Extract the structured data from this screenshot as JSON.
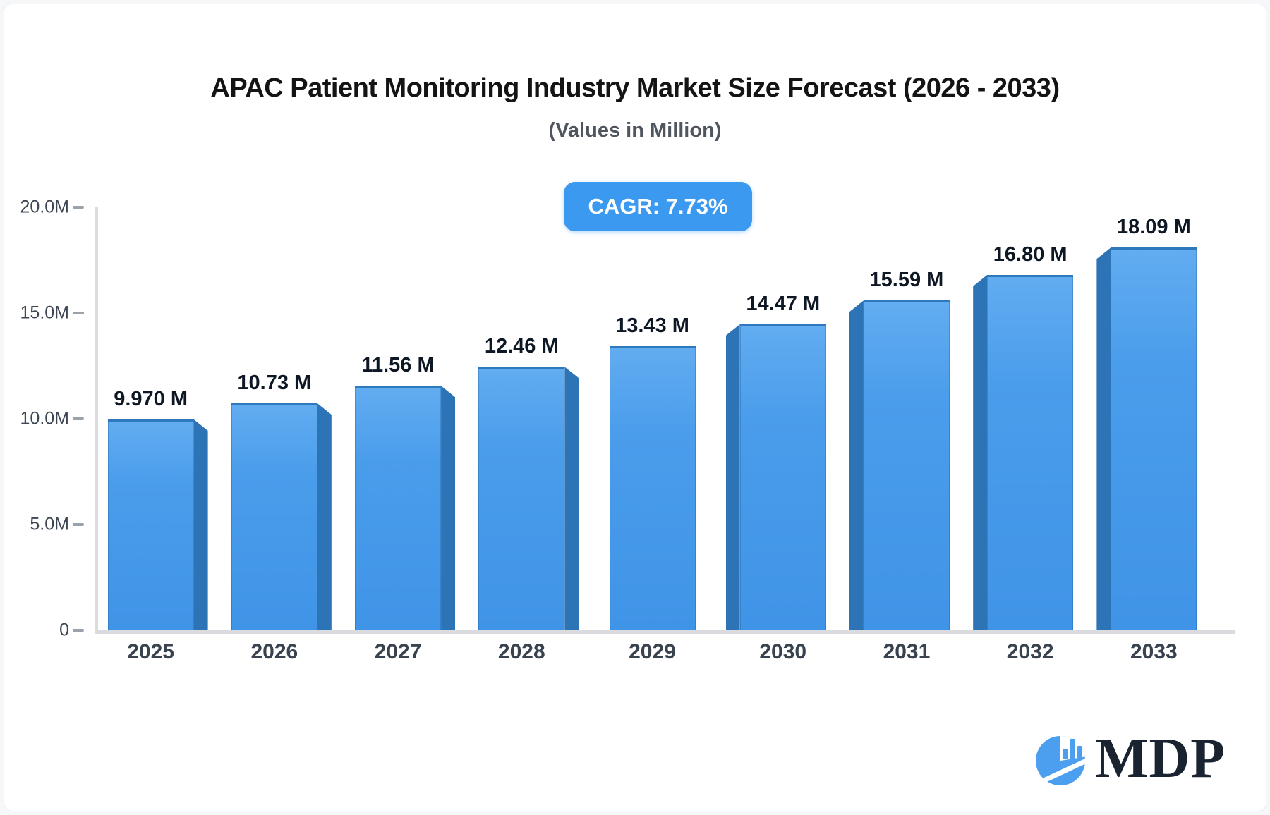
{
  "page": {
    "background": "#f6f7f9",
    "card_background": "#ffffff"
  },
  "header": {
    "title": "APAC Patient Monitoring Industry Market Size Forecast (2026 - 2033)",
    "subtitle": "(Values in Million)"
  },
  "badge": {
    "label": "CAGR: 7.73%",
    "background": "#3b9af0",
    "text_color": "#ffffff"
  },
  "chart_data": {
    "type": "bar",
    "title": "APAC Patient Monitoring Industry Market Size Forecast (2026 - 2033)",
    "subtitle": "(Values in Million)",
    "unit": "Million",
    "cagr": "7.73%",
    "categories": [
      "2025",
      "2026",
      "2027",
      "2028",
      "2029",
      "2030",
      "2031",
      "2032",
      "2033"
    ],
    "values": [
      9.97,
      10.73,
      11.56,
      12.46,
      13.43,
      14.47,
      15.59,
      16.8,
      18.09
    ],
    "value_labels": [
      "9.970 M",
      "10.73 M",
      "11.56 M",
      "12.46 M",
      "13.43 M",
      "14.47 M",
      "15.59 M",
      "16.80 M",
      "18.09 M"
    ],
    "yticks": [
      {
        "label": "20.0M",
        "value": 20
      },
      {
        "label": "15.0M",
        "value": 15
      },
      {
        "label": "10.0M",
        "value": 10
      },
      {
        "label": "5.0M",
        "value": 5
      },
      {
        "label": "0",
        "value": 0
      }
    ],
    "ylim": [
      0,
      20
    ],
    "grid": false,
    "legend": "none",
    "bar_face_color": "#4a9deb",
    "bar_face_top_color": "#62acf1",
    "bar_side_color": "#2d74b7",
    "bar_border_color": "#2e78bd",
    "axis_color": "#dadce0",
    "tick_color": "#9aa2ac",
    "label_color": "#0e1724"
  },
  "logo": {
    "text": "MDP",
    "text_color": "#1a2330",
    "mark_color": "#4b9fee",
    "mark_icon": "pie-bar-chart-icon"
  }
}
